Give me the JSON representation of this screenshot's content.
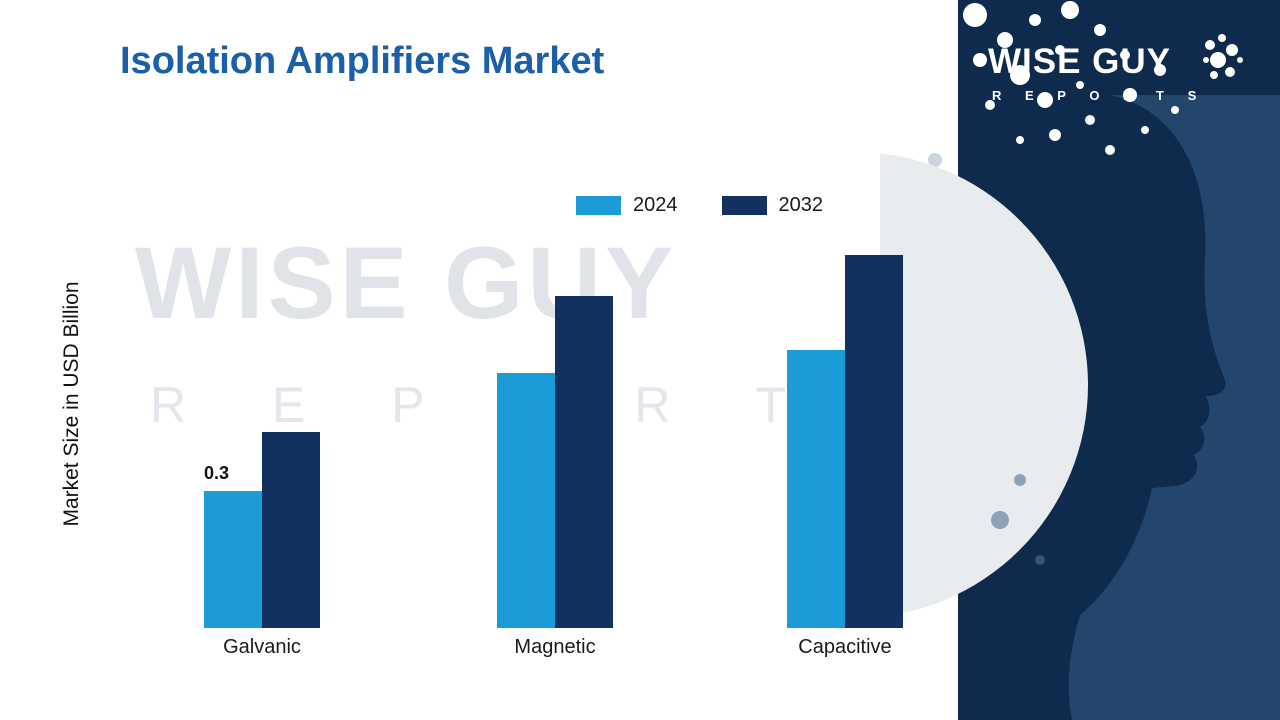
{
  "page_title": "Isolation Amplifiers Market",
  "logo": {
    "line1": "WISE GUY",
    "line2": "R E P O R T S"
  },
  "watermark": {
    "line1": "WISE GUY",
    "line2": "R E P O R T S"
  },
  "chart_data": {
    "type": "bar",
    "title": "Isolation Amplifiers Market",
    "ylabel": "Market Size in USD Billion",
    "xlabel": "",
    "categories": [
      "Galvanic",
      "Magnetic",
      "Capacitive"
    ],
    "series": [
      {
        "name": "2024",
        "color": "#1b9bd8",
        "values": [
          0.3,
          0.56,
          0.61
        ],
        "data_labels": [
          "0.3",
          "",
          ""
        ]
      },
      {
        "name": "2032",
        "color": "#12315e",
        "values": [
          0.43,
          0.73,
          0.82
        ],
        "data_labels": [
          "",
          "",
          ""
        ]
      }
    ],
    "ylim": [
      0,
      0.9
    ],
    "grid": false,
    "legend_position": "top-center",
    "unit": "USD Billion"
  },
  "colors": {
    "title": "#1a5fa8",
    "panel_background": "#0e2a4c",
    "face_silhouette": "#24466c",
    "panel_circle": "#e9ecef",
    "watermark": "#e0e4e9",
    "bar_2024": "#1b9bd8",
    "bar_2032": "#12315e"
  }
}
